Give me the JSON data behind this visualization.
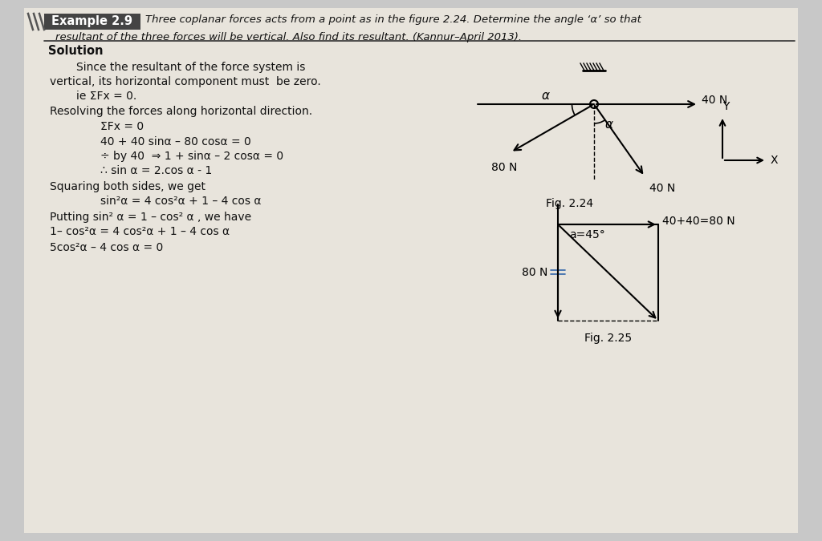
{
  "bg_color": "#c8c8c8",
  "page_color": "#e8e4dc",
  "title": "Example 2.9",
  "problem_text_line1": "Three coplanar forces acts from a point as in the figure 2.24. Determine the angle ‘α’ so that",
  "problem_text_line2": "resultant of the three forces will be vertical. Also find its resultant. (Kannur–April 2013).",
  "solution_label": "Solution",
  "sol_text1": "Since the resultant of the force system is",
  "sol_text2": "vertical, its horizontal component must  be zero.",
  "sol_text3": "ie ΣFx = 0.",
  "sol_text4": "Resolving the forces along horizontal direction.",
  "eq1": "ΣFx = 0",
  "eq2": "40 + 40 sinα – 80 cosα = 0",
  "eq3": "÷ by 40  ⇒ 1 + sinα – 2 cosα = 0",
  "eq4": "∴ sin α = 2.cos α - 1",
  "sq_label": "Squaring both sides, we get",
  "eq5": "sin²α = 4 cos²α + 1 – 4 cos α",
  "put_label": "Putting sin² α = 1 – cos² α , we have",
  "eq6": "1– cos²α = 4 cos²α + 1 – 4 cos α",
  "eq7": "5cos²α – 4 cos α = 0",
  "fig224_label": "Fig. 2.24",
  "fig225_label": "Fig. 2.25",
  "force_40N_horiz": "40 N",
  "force_80N": "80 N",
  "force_40N_diag": "40 N",
  "alpha_label": "α",
  "fig225_horiz_label": "40+40=80 N",
  "fig225_angle_label": "a=45°",
  "fig225_vert_label": "80 N",
  "title_box_color": "#444444"
}
